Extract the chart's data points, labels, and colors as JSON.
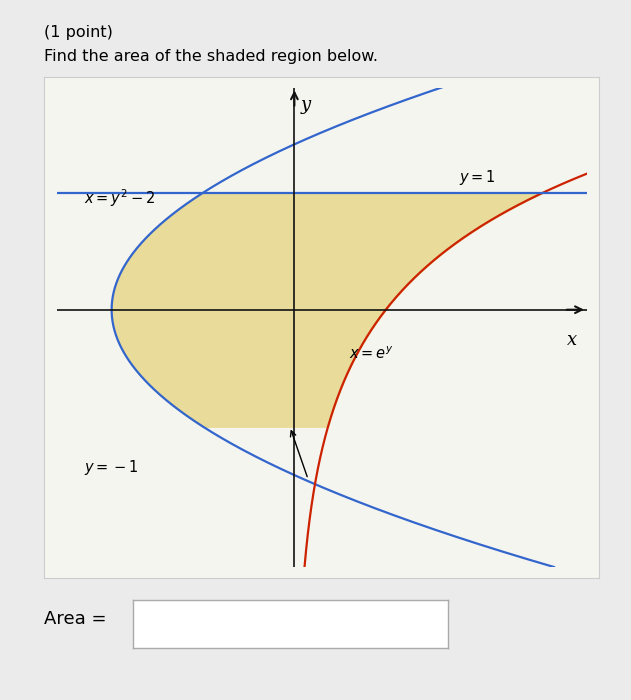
{
  "title_point": "(1 point)",
  "title_text": "Find the area of the shaded region below.",
  "bg_color": "#ebebeb",
  "plot_bg_color": "#f0f0f0",
  "plot_inner_bg": "#f5f5f0",
  "shaded_color": "#e8d990",
  "shaded_alpha": 0.9,
  "parabola_color": "#3366cc",
  "exp_color": "#cc2200",
  "line_y1_color": "#3366cc",
  "axis_color": "#111111",
  "x_range": [
    -2.6,
    3.2
  ],
  "y_range": [
    -2.2,
    1.9
  ],
  "y_shaded_min": -1.0,
  "y_shaded_max": 1.0,
  "area_label_text": "Area =",
  "label_x_eq": "x = y^2 - 2",
  "label_y1": "y = 1",
  "label_xey": "x = e^y",
  "label_ym1": "y = -1",
  "label_y_axis": "y",
  "label_x_axis": "x"
}
